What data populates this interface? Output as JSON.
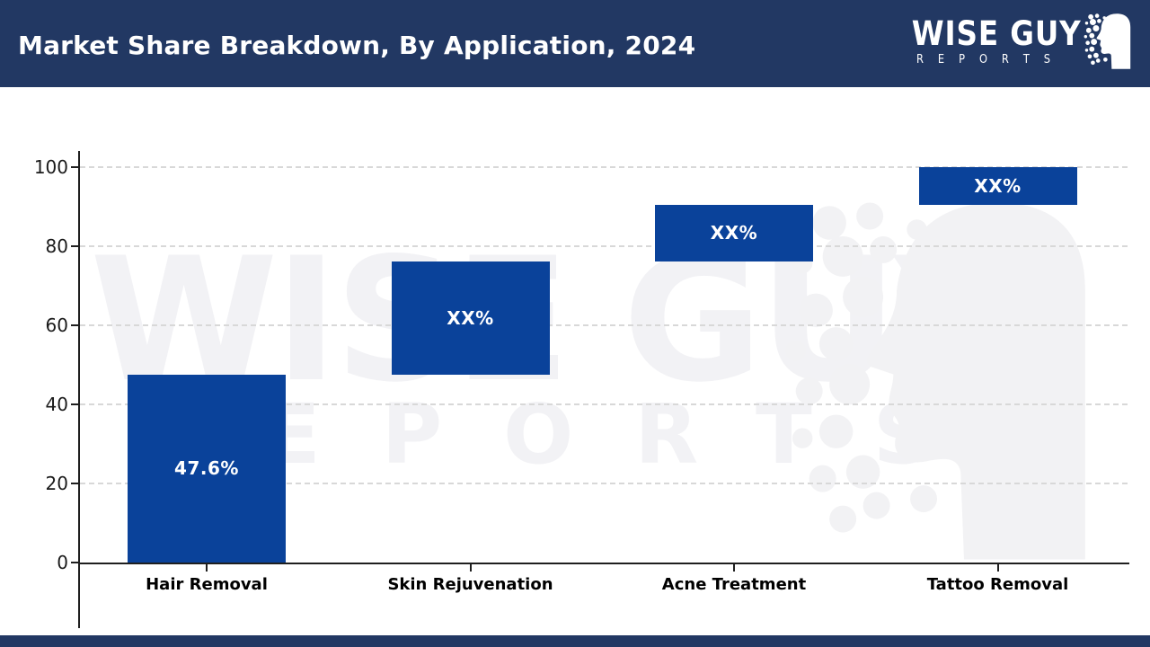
{
  "header": {
    "title": "Market Share Breakdown, By Application, 2024",
    "logo": {
      "primary": "WISE GUY",
      "secondary": "R E P O R T S"
    }
  },
  "watermark": {
    "primary": "WISE GUY",
    "secondary": "REPORTS"
  },
  "chart_data": {
    "type": "bar",
    "subtype": "waterfall",
    "title": "Market Share Breakdown, By Application, 2024",
    "categories": [
      "Hair Removal",
      "Skin Rejuvenation",
      "Acne Treatment",
      "Tattoo Removal"
    ],
    "segments": [
      {
        "category": "Hair Removal",
        "start": 0,
        "end": 47.6,
        "label": "47.6%"
      },
      {
        "category": "Skin Rejuvenation",
        "start": 47.6,
        "end": 76.2,
        "label": "XX%"
      },
      {
        "category": "Acne Treatment",
        "start": 76.2,
        "end": 90.5,
        "label": "XX%"
      },
      {
        "category": "Tattoo Removal",
        "start": 90.5,
        "end": 100,
        "label": "XX%"
      }
    ],
    "yticks": [
      0,
      20,
      40,
      60,
      80,
      100
    ],
    "ylim": [
      0,
      104
    ],
    "xlabel": "",
    "ylabel": "",
    "grid": "horizontal-dashed",
    "legend": "none",
    "bar_color": "#0a429a",
    "bar_label_color": "#ffffff"
  },
  "colors": {
    "header_bg": "#223863",
    "footer_bg": "#223863",
    "bar": "#0a429a",
    "gridline": "#d8d8d8",
    "axis": "#1f1f1f",
    "watermark": "#f2f2f5"
  }
}
